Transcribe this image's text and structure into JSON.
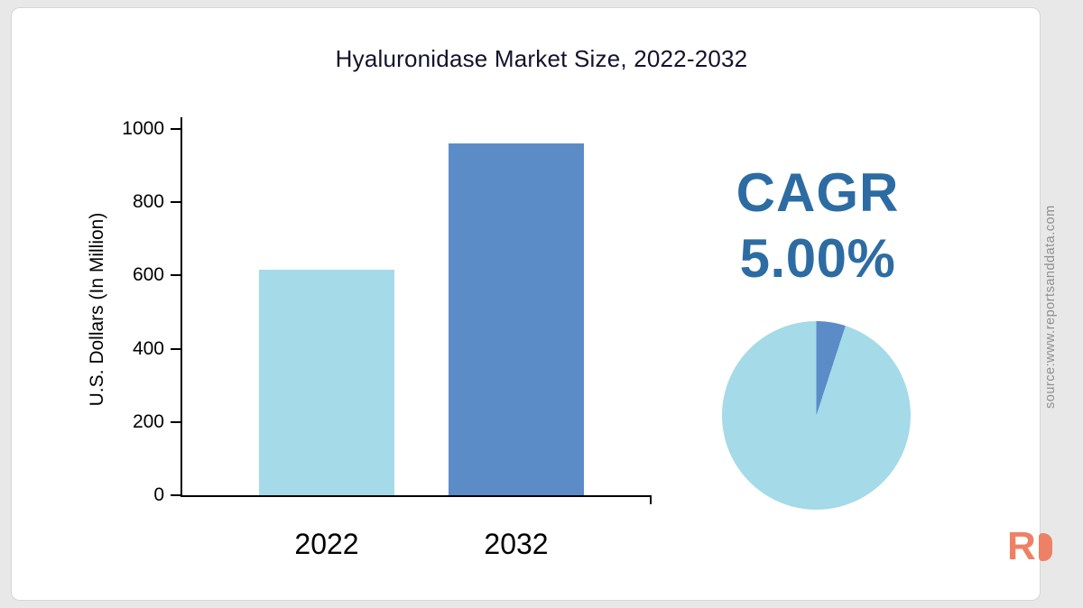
{
  "page": {
    "source": "source:www.reportsanddata.com",
    "logo_text": "R"
  },
  "cagr": {
    "label": "CAGR",
    "value": "5.00%"
  },
  "chart_data": [
    {
      "type": "bar",
      "title": "Hyaluronidase Market Size, 2022-2032",
      "categories": [
        "2022",
        "2032"
      ],
      "values": [
        615,
        960
      ],
      "xlabel": "",
      "ylabel": "U.S. Dollars (In Million)",
      "ylim": [
        0,
        1000
      ],
      "yticks": [
        0,
        200,
        400,
        600,
        800,
        1000
      ],
      "bar_colors": [
        "#a5dae8",
        "#5b8cc8"
      ],
      "grid": false,
      "legend": "none"
    },
    {
      "type": "pie",
      "labels": [
        "CAGR share",
        "remainder"
      ],
      "values": [
        5,
        95
      ],
      "colors": [
        "#5b8cc8",
        "#a5dae8"
      ],
      "start_angle_deg": 0,
      "annotation": "CAGR 5.00%"
    }
  ],
  "colors": {
    "accent_blue": "#2d6ca3",
    "bar_light": "#a5dae8",
    "bar_dark": "#5b8cc8",
    "logo_coral": "#ee8165"
  }
}
